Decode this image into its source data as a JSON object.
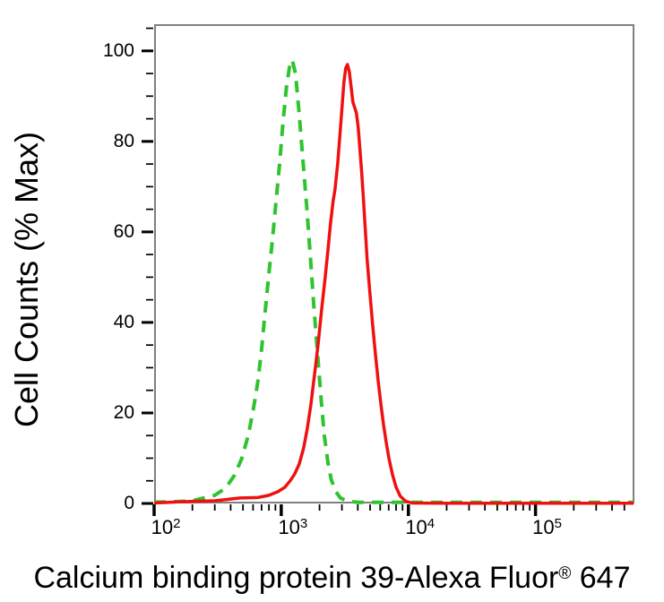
{
  "chart_data": {
    "type": "line",
    "subtype": "flow-cytometry-histogram",
    "xlabel": "Calcium binding protein 39-Alexa Fluor® 647",
    "xlabel_parts": {
      "main": "Calcium binding protein 39-Alexa Fluor",
      "registered": "®",
      "suffix": " 647"
    },
    "ylabel": "Cell Counts (% Max)",
    "grid": "off",
    "legend": "none",
    "frame_color": "#808080",
    "tick_color": "#000000",
    "x_axis": {
      "scale": "log",
      "min": 100,
      "max": 600000,
      "major_ticks": [
        100,
        1000,
        10000,
        100000
      ],
      "major_tick_labels": [
        [
          "10",
          "2"
        ],
        [
          "10",
          "3"
        ],
        [
          "10",
          "4"
        ],
        [
          "10",
          "5"
        ]
      ],
      "minor_ticks_per_decade": [
        2,
        3,
        4,
        5,
        6,
        7,
        8,
        9
      ]
    },
    "y_axis": {
      "scale": "linear",
      "min": 0,
      "max": 105.9,
      "major_ticks": [
        0,
        20,
        40,
        60,
        80,
        100
      ],
      "major_tick_labels": [
        "0",
        "20",
        "40",
        "60",
        "80",
        "100"
      ],
      "minor_tick_step": 5
    },
    "series": [
      {
        "name": "green-dashed-control",
        "style": "dashed",
        "color": "#2fc32f",
        "stroke_width": 4,
        "dash": "13 9",
        "peak": {
          "x": 1220,
          "pct": 98
        },
        "points": [
          [
            100,
            0.3
          ],
          [
            150,
            0.4
          ],
          [
            200,
            0.6
          ],
          [
            300,
            1.8
          ],
          [
            365,
            3.4
          ],
          [
            430,
            6.3
          ],
          [
            490,
            10
          ],
          [
            550,
            15
          ],
          [
            605,
            21
          ],
          [
            655,
            27
          ],
          [
            700,
            34
          ],
          [
            745,
            42
          ],
          [
            795,
            50
          ],
          [
            850,
            58
          ],
          [
            905,
            66
          ],
          [
            970,
            75
          ],
          [
            1030,
            84
          ],
          [
            1100,
            92
          ],
          [
            1170,
            97
          ],
          [
            1220,
            98
          ],
          [
            1295,
            95
          ],
          [
            1385,
            86
          ],
          [
            1480,
            76
          ],
          [
            1580,
            66
          ],
          [
            1690,
            55
          ],
          [
            1800,
            44
          ],
          [
            1930,
            33
          ],
          [
            2060,
            23
          ],
          [
            2180,
            15
          ],
          [
            2330,
            9
          ],
          [
            2470,
            5.3
          ],
          [
            2690,
            2.6
          ],
          [
            2920,
            1.2
          ],
          [
            3330,
            0.5
          ],
          [
            4030,
            0.25
          ],
          [
            10000,
            0.25
          ],
          [
            100000,
            0.25
          ],
          [
            590000,
            0.25
          ]
        ]
      },
      {
        "name": "red-solid-sample",
        "style": "solid",
        "color": "#f01010",
        "stroke_width": 3.5,
        "dash": "",
        "peak": {
          "x": 3320,
          "pct": 97
        },
        "points": [
          [
            100,
            0.1
          ],
          [
            170,
            0.4
          ],
          [
            300,
            0.6
          ],
          [
            475,
            1.2
          ],
          [
            655,
            1.3
          ],
          [
            800,
            1.8
          ],
          [
            940,
            2.6
          ],
          [
            1070,
            3.6
          ],
          [
            1175,
            5
          ],
          [
            1275,
            6.5
          ],
          [
            1385,
            8.7
          ],
          [
            1500,
            12.3
          ],
          [
            1600,
            16.4
          ],
          [
            1710,
            21.8
          ],
          [
            1825,
            28.3
          ],
          [
            1945,
            35
          ],
          [
            2075,
            42.6
          ],
          [
            2215,
            50
          ],
          [
            2325,
            55.8
          ],
          [
            2440,
            61.8
          ],
          [
            2560,
            66.9
          ],
          [
            2645,
            69.3
          ],
          [
            2780,
            75.2
          ],
          [
            2915,
            82.6
          ],
          [
            3015,
            88.1
          ],
          [
            3110,
            93.1
          ],
          [
            3215,
            96.2
          ],
          [
            3320,
            97
          ],
          [
            3430,
            95.4
          ],
          [
            3540,
            92.1
          ],
          [
            3660,
            88.7
          ],
          [
            3780,
            87.5
          ],
          [
            3900,
            86.3
          ],
          [
            4030,
            83.2
          ],
          [
            4160,
            78.2
          ],
          [
            4300,
            72.9
          ],
          [
            4440,
            66.9
          ],
          [
            4585,
            60.4
          ],
          [
            4740,
            53.9
          ],
          [
            4980,
            46.5
          ],
          [
            5230,
            39.6
          ],
          [
            5495,
            33.3
          ],
          [
            5770,
            27.3
          ],
          [
            6065,
            22.2
          ],
          [
            6370,
            17.4
          ],
          [
            6695,
            13.5
          ],
          [
            7035,
            9.9
          ],
          [
            7505,
            6.3
          ],
          [
            8005,
            3.6
          ],
          [
            8640,
            1.6
          ],
          [
            9525,
            0.5
          ],
          [
            10670,
            0.1
          ],
          [
            20000,
            0.05
          ],
          [
            100000,
            0.05
          ],
          [
            590000,
            0.05
          ]
        ]
      }
    ]
  }
}
